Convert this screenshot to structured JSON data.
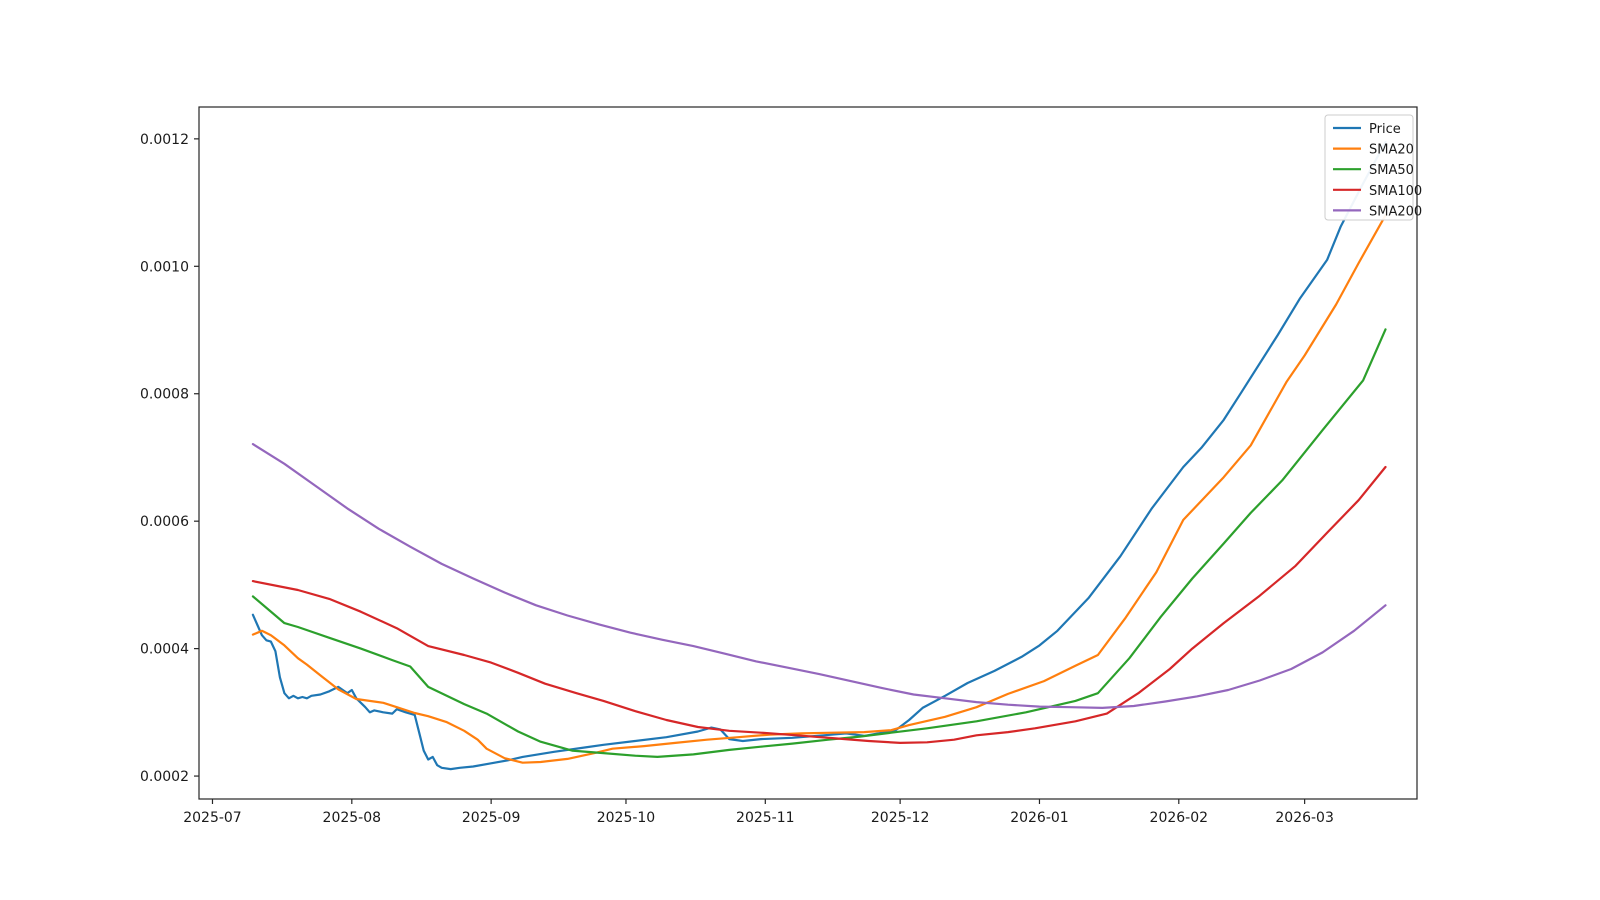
{
  "chart_data": {
    "type": "line",
    "title": "",
    "xlabel": "",
    "ylabel": "",
    "grid": false,
    "x_tick_labels": [
      "2025-07",
      "2025-08",
      "2025-09",
      "2025-10",
      "2025-11",
      "2025-12",
      "2026-01",
      "2026-02",
      "2026-03"
    ],
    "x_tick_dates": [
      "2025-07-01",
      "2025-08-01",
      "2025-09-01",
      "2025-10-01",
      "2025-11-01",
      "2025-12-01",
      "2026-01-01",
      "2026-02-01",
      "2026-03-01"
    ],
    "y_tick_labels": [
      "0.0002",
      "0.0004",
      "0.0006",
      "0.0008",
      "0.0010",
      "0.0012"
    ],
    "y_tick_values": [
      0.0002,
      0.0004,
      0.0006,
      0.0008,
      0.001,
      0.0012
    ],
    "x_range": [
      "2025-06-28",
      "2026-03-26"
    ],
    "y_range": [
      0.000164,
      0.00125
    ],
    "legend": {
      "position": "upper-right",
      "entries": [
        {
          "label": "Price",
          "color": "#1f77b4"
        },
        {
          "label": "SMA20",
          "color": "#ff7f0e"
        },
        {
          "label": "SMA50",
          "color": "#2ca02c"
        },
        {
          "label": "SMA100",
          "color": "#d62728"
        },
        {
          "label": "SMA200",
          "color": "#9467bd"
        }
      ]
    },
    "series": [
      {
        "name": "Price",
        "color": "#1f77b4",
        "points": [
          [
            "2025-07-10",
            0.000453
          ],
          [
            "2025-07-11",
            0.000437
          ],
          [
            "2025-07-12",
            0.000421
          ],
          [
            "2025-07-13",
            0.000413
          ],
          [
            "2025-07-14",
            0.000411
          ],
          [
            "2025-07-15",
            0.000396
          ],
          [
            "2025-07-16",
            0.000355
          ],
          [
            "2025-07-17",
            0.00033
          ],
          [
            "2025-07-18",
            0.000322
          ],
          [
            "2025-07-19",
            0.000326
          ],
          [
            "2025-07-20",
            0.000322
          ],
          [
            "2025-07-21",
            0.000324
          ],
          [
            "2025-07-22",
            0.000322
          ],
          [
            "2025-07-23",
            0.000326
          ],
          [
            "2025-07-25",
            0.000328
          ],
          [
            "2025-07-27",
            0.000333
          ],
          [
            "2025-07-29",
            0.00034
          ],
          [
            "2025-07-31",
            0.00033
          ],
          [
            "2025-08-01",
            0.000335
          ],
          [
            "2025-08-02",
            0.000322
          ],
          [
            "2025-08-04",
            0.000308
          ],
          [
            "2025-08-05",
            0.0003
          ],
          [
            "2025-08-06",
            0.000303
          ],
          [
            "2025-08-08",
            0.0003
          ],
          [
            "2025-08-10",
            0.000298
          ],
          [
            "2025-08-11",
            0.000305
          ],
          [
            "2025-08-13",
            0.0003
          ],
          [
            "2025-08-15",
            0.000296
          ],
          [
            "2025-08-16",
            0.000268
          ],
          [
            "2025-08-17",
            0.00024
          ],
          [
            "2025-08-18",
            0.000226
          ],
          [
            "2025-08-19",
            0.00023
          ],
          [
            "2025-08-20",
            0.000217
          ],
          [
            "2025-08-21",
            0.000213
          ],
          [
            "2025-08-23",
            0.000211
          ],
          [
            "2025-08-25",
            0.000213
          ],
          [
            "2025-08-28",
            0.000215
          ],
          [
            "2025-09-01",
            0.00022
          ],
          [
            "2025-09-05",
            0.000225
          ],
          [
            "2025-09-08",
            0.00023
          ],
          [
            "2025-09-15",
            0.000238
          ],
          [
            "2025-09-22",
            0.000245
          ],
          [
            "2025-09-26",
            0.000249
          ],
          [
            "2025-10-03",
            0.000255
          ],
          [
            "2025-10-10",
            0.000261
          ],
          [
            "2025-10-17",
            0.00027
          ],
          [
            "2025-10-20",
            0.000276
          ],
          [
            "2025-10-22",
            0.000273
          ],
          [
            "2025-10-24",
            0.000258
          ],
          [
            "2025-10-27",
            0.000255
          ],
          [
            "2025-10-31",
            0.000258
          ],
          [
            "2025-11-07",
            0.00026
          ],
          [
            "2025-11-14",
            0.000264
          ],
          [
            "2025-11-19",
            0.000267
          ],
          [
            "2025-11-23",
            0.000263
          ],
          [
            "2025-11-27",
            0.000268
          ],
          [
            "2025-11-30",
            0.000272
          ],
          [
            "2025-12-03",
            0.000288
          ],
          [
            "2025-12-06",
            0.000307
          ],
          [
            "2025-12-11",
            0.000326
          ],
          [
            "2025-12-16",
            0.000346
          ],
          [
            "2025-12-22",
            0.000365
          ],
          [
            "2025-12-28",
            0.000387
          ],
          [
            "2026-01-01",
            0.000405
          ],
          [
            "2026-01-05",
            0.000428
          ],
          [
            "2026-01-12",
            0.00048
          ],
          [
            "2026-01-19",
            0.000545
          ],
          [
            "2026-01-26",
            0.00062
          ],
          [
            "2026-02-02",
            0.000685
          ],
          [
            "2026-02-06",
            0.000715
          ],
          [
            "2026-02-11",
            0.000759
          ],
          [
            "2026-02-15",
            0.000803
          ],
          [
            "2026-02-23",
            0.000892
          ],
          [
            "2026-02-28",
            0.00095
          ],
          [
            "2026-03-06",
            0.00101
          ],
          [
            "2026-03-09",
            0.001062
          ],
          [
            "2026-03-14",
            0.00113
          ],
          [
            "2026-03-19",
            0.001195
          ]
        ]
      },
      {
        "name": "SMA20",
        "color": "#ff7f0e",
        "points": [
          [
            "2025-07-10",
            0.000422
          ],
          [
            "2025-07-12",
            0.000428
          ],
          [
            "2025-07-14",
            0.000421
          ],
          [
            "2025-07-17",
            0.000405
          ],
          [
            "2025-07-20",
            0.000385
          ],
          [
            "2025-07-22",
            0.000375
          ],
          [
            "2025-07-25",
            0.000358
          ],
          [
            "2025-07-29",
            0.000336
          ],
          [
            "2025-08-02",
            0.000321
          ],
          [
            "2025-08-08",
            0.000315
          ],
          [
            "2025-08-11",
            0.000308
          ],
          [
            "2025-08-15",
            0.000299
          ],
          [
            "2025-08-18",
            0.000294
          ],
          [
            "2025-08-22",
            0.000285
          ],
          [
            "2025-08-26",
            0.000271
          ],
          [
            "2025-08-29",
            0.000257
          ],
          [
            "2025-08-31",
            0.000243
          ],
          [
            "2025-09-04",
            0.000228
          ],
          [
            "2025-09-08",
            0.000221
          ],
          [
            "2025-09-12",
            0.000222
          ],
          [
            "2025-09-18",
            0.000227
          ],
          [
            "2025-09-24",
            0.000236
          ],
          [
            "2025-09-28",
            0.000243
          ],
          [
            "2025-10-05",
            0.000247
          ],
          [
            "2025-10-12",
            0.000252
          ],
          [
            "2025-10-19",
            0.000257
          ],
          [
            "2025-10-26",
            0.000261
          ],
          [
            "2025-11-02",
            0.000265
          ],
          [
            "2025-11-09",
            0.000267
          ],
          [
            "2025-11-16",
            0.000268
          ],
          [
            "2025-11-23",
            0.000269
          ],
          [
            "2025-11-29",
            0.000272
          ],
          [
            "2025-12-03",
            0.00028
          ],
          [
            "2025-12-11",
            0.000293
          ],
          [
            "2025-12-18",
            0.000308
          ],
          [
            "2025-12-25",
            0.000329
          ],
          [
            "2026-01-02",
            0.000349
          ],
          [
            "2026-01-09",
            0.000373
          ],
          [
            "2026-01-14",
            0.00039
          ],
          [
            "2026-01-20",
            0.000447
          ],
          [
            "2026-01-27",
            0.00052
          ],
          [
            "2026-02-02",
            0.000602
          ],
          [
            "2026-02-11",
            0.000669
          ],
          [
            "2026-02-17",
            0.000719
          ],
          [
            "2026-02-25",
            0.000819
          ],
          [
            "2026-03-01",
            0.00086
          ],
          [
            "2026-03-08",
            0.00094
          ],
          [
            "2026-03-13",
            0.001005
          ],
          [
            "2026-03-19",
            0.00108
          ]
        ]
      },
      {
        "name": "SMA50",
        "color": "#2ca02c",
        "points": [
          [
            "2025-07-10",
            0.000482
          ],
          [
            "2025-07-17",
            0.00044
          ],
          [
            "2025-07-20",
            0.000434
          ],
          [
            "2025-07-27",
            0.000417
          ],
          [
            "2025-08-03",
            0.0004
          ],
          [
            "2025-08-10",
            0.000382
          ],
          [
            "2025-08-14",
            0.000372
          ],
          [
            "2025-08-18",
            0.00034
          ],
          [
            "2025-08-26",
            0.000313
          ],
          [
            "2025-08-31",
            0.000298
          ],
          [
            "2025-09-07",
            0.00027
          ],
          [
            "2025-09-12",
            0.000254
          ],
          [
            "2025-09-19",
            0.00024
          ],
          [
            "2025-09-26",
            0.000236
          ],
          [
            "2025-10-03",
            0.000232
          ],
          [
            "2025-10-08",
            0.00023
          ],
          [
            "2025-10-16",
            0.000234
          ],
          [
            "2025-10-24",
            0.000241
          ],
          [
            "2025-10-31",
            0.000246
          ],
          [
            "2025-11-07",
            0.000251
          ],
          [
            "2025-11-15",
            0.000257
          ],
          [
            "2025-11-22",
            0.000262
          ],
          [
            "2025-11-29",
            0.000268
          ],
          [
            "2025-12-07",
            0.000275
          ],
          [
            "2025-12-18",
            0.000286
          ],
          [
            "2025-12-29",
            0.0003
          ],
          [
            "2026-01-09",
            0.000318
          ],
          [
            "2026-01-14",
            0.00033
          ],
          [
            "2026-01-21",
            0.000385
          ],
          [
            "2026-01-28",
            0.00045
          ],
          [
            "2026-02-04",
            0.00051
          ],
          [
            "2026-02-11",
            0.000565
          ],
          [
            "2026-02-17",
            0.000613
          ],
          [
            "2026-02-24",
            0.000664
          ],
          [
            "2026-03-05",
            0.000743
          ],
          [
            "2026-03-14",
            0.000821
          ],
          [
            "2026-03-19",
            0.000901
          ]
        ]
      },
      {
        "name": "SMA100",
        "color": "#d62728",
        "points": [
          [
            "2025-07-10",
            0.000506
          ],
          [
            "2025-07-20",
            0.000492
          ],
          [
            "2025-07-27",
            0.000478
          ],
          [
            "2025-08-03",
            0.000458
          ],
          [
            "2025-08-11",
            0.000432
          ],
          [
            "2025-08-18",
            0.000404
          ],
          [
            "2025-08-26",
            0.00039
          ],
          [
            "2025-09-01",
            0.000378
          ],
          [
            "2025-09-07",
            0.000362
          ],
          [
            "2025-09-13",
            0.000345
          ],
          [
            "2025-09-20",
            0.00033
          ],
          [
            "2025-09-26",
            0.000318
          ],
          [
            "2025-10-03",
            0.000302
          ],
          [
            "2025-10-10",
            0.000288
          ],
          [
            "2025-10-17",
            0.000277
          ],
          [
            "2025-10-24",
            0.000271
          ],
          [
            "2025-10-31",
            0.000268
          ],
          [
            "2025-11-08",
            0.000264
          ],
          [
            "2025-11-17",
            0.000259
          ],
          [
            "2025-11-24",
            0.000255
          ],
          [
            "2025-12-01",
            0.000252
          ],
          [
            "2025-12-07",
            0.000253
          ],
          [
            "2025-12-13",
            0.000257
          ],
          [
            "2025-12-18",
            0.000264
          ],
          [
            "2025-12-25",
            0.000269
          ],
          [
            "2025-12-31",
            0.000275
          ],
          [
            "2026-01-09",
            0.000286
          ],
          [
            "2026-01-16",
            0.000298
          ],
          [
            "2026-01-23",
            0.00033
          ],
          [
            "2026-01-30",
            0.000368
          ],
          [
            "2026-02-04",
            0.0004
          ],
          [
            "2026-02-11",
            0.00044
          ],
          [
            "2026-02-19",
            0.000483
          ],
          [
            "2026-02-27",
            0.00053
          ],
          [
            "2026-03-06",
            0.000582
          ],
          [
            "2026-03-13",
            0.000633
          ],
          [
            "2026-03-19",
            0.000685
          ]
        ]
      },
      {
        "name": "SMA200",
        "color": "#9467bd",
        "points": [
          [
            "2025-07-10",
            0.000721
          ],
          [
            "2025-07-17",
            0.00069
          ],
          [
            "2025-07-24",
            0.000655
          ],
          [
            "2025-07-31",
            0.00062
          ],
          [
            "2025-08-07",
            0.000588
          ],
          [
            "2025-08-14",
            0.00056
          ],
          [
            "2025-08-21",
            0.000533
          ],
          [
            "2025-08-28",
            0.00051
          ],
          [
            "2025-09-04",
            0.000488
          ],
          [
            "2025-09-11",
            0.000468
          ],
          [
            "2025-09-18",
            0.000452
          ],
          [
            "2025-09-25",
            0.000438
          ],
          [
            "2025-10-02",
            0.000425
          ],
          [
            "2025-10-09",
            0.000414
          ],
          [
            "2025-10-16",
            0.000404
          ],
          [
            "2025-10-23",
            0.000392
          ],
          [
            "2025-10-30",
            0.00038
          ],
          [
            "2025-11-06",
            0.00037
          ],
          [
            "2025-11-13",
            0.00036
          ],
          [
            "2025-11-20",
            0.000349
          ],
          [
            "2025-11-27",
            0.000338
          ],
          [
            "2025-12-04",
            0.000328
          ],
          [
            "2025-12-11",
            0.000322
          ],
          [
            "2025-12-18",
            0.000316
          ],
          [
            "2025-12-25",
            0.000312
          ],
          [
            "2026-01-01",
            0.000309
          ],
          [
            "2026-01-08",
            0.000308
          ],
          [
            "2026-01-15",
            0.000307
          ],
          [
            "2026-01-22",
            0.00031
          ],
          [
            "2026-01-29",
            0.000317
          ],
          [
            "2026-02-05",
            0.000325
          ],
          [
            "2026-02-12",
            0.000335
          ],
          [
            "2026-02-19",
            0.00035
          ],
          [
            "2026-02-26",
            0.000368
          ],
          [
            "2026-03-05",
            0.000394
          ],
          [
            "2026-03-12",
            0.000428
          ],
          [
            "2026-03-19",
            0.000468
          ]
        ]
      }
    ],
    "style": {
      "line_width": 2.2,
      "spine_color": "#262626",
      "tick_label_color": "#1a1a1a",
      "legend_border_color": "#cccccc",
      "legend_bg": "#ffffff"
    }
  }
}
